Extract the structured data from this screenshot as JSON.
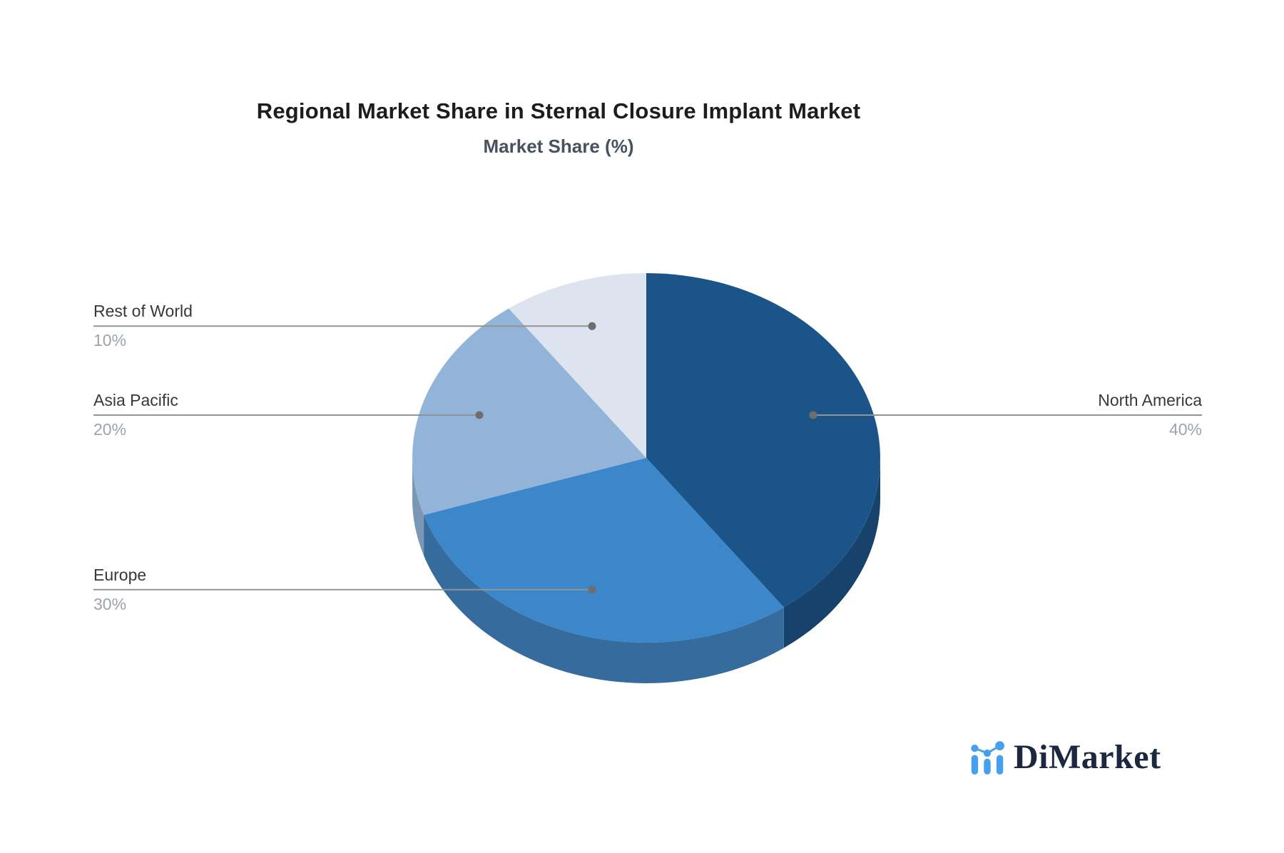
{
  "chart_data": {
    "type": "pie",
    "style": "3d",
    "start_angle": "top",
    "direction": "clockwise",
    "title": "Regional Market Share in Sternal Closure Implant Market",
    "subtitle": "Market Share (%)",
    "unit": "%",
    "categories": [
      "North America",
      "Europe",
      "Asia Pacific",
      "Rest of World"
    ],
    "values": [
      40,
      30,
      20,
      10
    ],
    "labels": [
      {
        "name": "North America",
        "value_text": "40%"
      },
      {
        "name": "Europe",
        "value_text": "30%"
      },
      {
        "name": "Asia Pacific",
        "value_text": "20%"
      },
      {
        "name": "Rest of World",
        "value_text": "10%"
      }
    ],
    "slice_colors": [
      "#1A5488",
      "#3C86CA",
      "#92B4D9",
      "#DEE4EF"
    ],
    "slice_side_colors": [
      "#16426B",
      "#356B9D",
      "#7B97B4",
      "#B9C3D4"
    ],
    "legend_position": "none",
    "leader_line_color": "#949494",
    "leader_dot_color": "#6E6E6E",
    "label_text_color": "#383838",
    "value_text_color": "#9CA3AB",
    "title_color": "#1D1D1F",
    "subtitle_color": "#47525F"
  },
  "watermark": {
    "brand": "DiMarket",
    "icon": "bar-line-chart-logo",
    "icon_color": "#47A0ED",
    "text_color": "#1B2840"
  }
}
